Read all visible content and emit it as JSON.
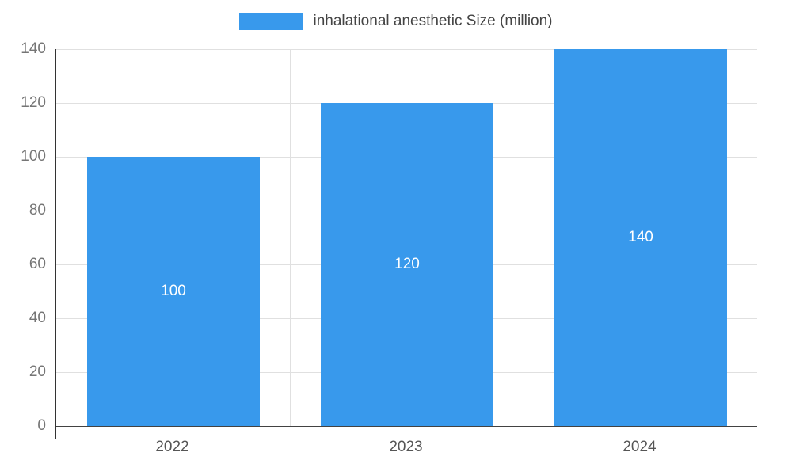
{
  "legend": {
    "label": "inhalational anesthetic Size (million)"
  },
  "chart_data": {
    "type": "bar",
    "title": "",
    "xlabel": "",
    "ylabel": "",
    "categories": [
      "2022",
      "2023",
      "2024"
    ],
    "values": [
      100,
      120,
      140
    ],
    "series_name": "inhalational anesthetic Size (million)",
    "data_labels": [
      "100",
      "120",
      "140"
    ],
    "ylim": [
      0,
      140
    ],
    "yticks": [
      0,
      20,
      40,
      60,
      80,
      100,
      120,
      140
    ],
    "grid": true,
    "legend_position": "top"
  },
  "style": {
    "bar_color": "#3899ec",
    "bar_label_color": "#ffffff",
    "gridline_color": "#e0e0e0",
    "axis_line_color": "#333333",
    "y_label_color": "#757575",
    "x_label_color": "#555555",
    "legend_text_color": "#444444"
  }
}
